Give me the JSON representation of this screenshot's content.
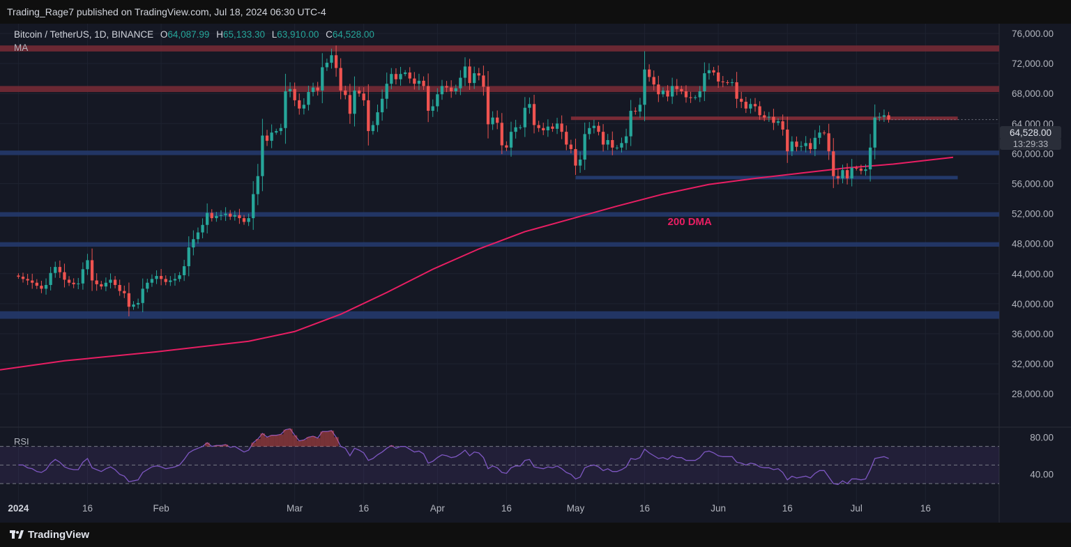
{
  "caption": "Trading_Rage7 published on TradingView.com, Jul 18, 2024 06:30 UTC-4",
  "legend": {
    "symbol": "Bitcoin / TetherUS, 1D, BINANCE",
    "open_key": "O",
    "open": "64,087.99",
    "high_key": "H",
    "high": "65,133.30",
    "low_key": "L",
    "low": "63,910.00",
    "close_key": "C",
    "close": "64,528.00",
    "indicator": "MA"
  },
  "rsi_label": "RSI",
  "last_price": "64,528.00",
  "countdown": "13:29:33",
  "footer_brand": "TradingView",
  "colors": {
    "bull": "#26a69a",
    "bear": "#ef5350",
    "ma": "#e91e63",
    "resistance": "#7a2b36",
    "support": "#23396b",
    "rsi": "#7e57c2"
  },
  "chart_data": {
    "type": "candlestick",
    "title": "Bitcoin / TetherUS, 1D, BINANCE",
    "y_ticks": [
      "76,000.00",
      "72,000.00",
      "68,000.00",
      "64,000.00",
      "60,000.00",
      "56,000.00",
      "52,000.00",
      "48,000.00",
      "44,000.00",
      "40,000.00",
      "36,000.00",
      "32,000.00",
      "28,000.00"
    ],
    "y_tick_values": [
      76000,
      72000,
      68000,
      64000,
      60000,
      56000,
      52000,
      48000,
      44000,
      40000,
      36000,
      32000,
      28000
    ],
    "x_ticks": [
      "2024",
      "16",
      "Feb",
      "Mar",
      "16",
      "Apr",
      "16",
      "May",
      "16",
      "Jun",
      "16",
      "Jul",
      "16"
    ],
    "x_tick_days": [
      0,
      15,
      31,
      60,
      75,
      91,
      106,
      121,
      136,
      152,
      167,
      182,
      197
    ],
    "day_range": [
      -4,
      213
    ],
    "ylim": [
      24400,
      77300
    ],
    "closes": [
      43600,
      43300,
      43100,
      42800,
      42400,
      42000,
      42500,
      44100,
      44900,
      44200,
      43200,
      42800,
      42600,
      42700,
      44600,
      45800,
      43100,
      42600,
      42300,
      42800,
      43200,
      42500,
      41700,
      41400,
      39600,
      39900,
      40100,
      42000,
      42800,
      43300,
      43700,
      43300,
      42900,
      43100,
      43300,
      43800,
      45000,
      47500,
      48600,
      49500,
      50500,
      52100,
      51400,
      51700,
      51800,
      52000,
      51600,
      51800,
      51400,
      50900,
      51400,
      54600,
      57000,
      62400,
      61700,
      62800,
      63000,
      63400,
      68300,
      68600,
      67100,
      66000,
      66500,
      68200,
      68800,
      68400,
      71500,
      72100,
      73100,
      71400,
      68400,
      67800,
      65300,
      68400,
      68000,
      67100,
      63000,
      63800,
      65500,
      67300,
      69300,
      70600,
      69900,
      70600,
      70800,
      70000,
      69300,
      69700,
      69000,
      65700,
      66300,
      67900,
      69000,
      68800,
      68300,
      68700,
      70100,
      71600,
      69400,
      70700,
      70400,
      68900,
      63900,
      64800,
      64100,
      61100,
      60800,
      62900,
      63500,
      63500,
      66100,
      66600,
      63800,
      63400,
      63100,
      63600,
      63300,
      64000,
      62900,
      61200,
      60600,
      58400,
      59200,
      62600,
      63400,
      63700,
      62900,
      61200,
      61800,
      60800,
      60800,
      61400,
      62300,
      65700,
      65600,
      66500,
      71200,
      70200,
      69200,
      67900,
      68400,
      67600,
      69000,
      68600,
      68300,
      67500,
      67400,
      67500,
      68300,
      70700,
      71100,
      70800,
      69600,
      69500,
      69400,
      69500,
      67300,
      66900,
      66000,
      66600,
      66300,
      65100,
      64800,
      64900,
      64100,
      64300,
      63200,
      60300,
      61600,
      60900,
      61000,
      61400,
      60600,
      62100,
      62800,
      62700,
      60300,
      57000,
      56700,
      57800,
      56700,
      58100,
      58000,
      57700,
      57900,
      60800,
      64800,
      64900,
      65100,
      64528
    ],
    "sma200": [
      [
        -4,
        31200
      ],
      [
        10,
        32400
      ],
      [
        30,
        33600
      ],
      [
        50,
        35000
      ],
      [
        60,
        36300
      ],
      [
        70,
        38600
      ],
      [
        80,
        41500
      ],
      [
        90,
        44600
      ],
      [
        100,
        47300
      ],
      [
        110,
        49600
      ],
      [
        120,
        51300
      ],
      [
        130,
        53000
      ],
      [
        140,
        54600
      ],
      [
        150,
        55900
      ],
      [
        160,
        56700
      ],
      [
        170,
        57400
      ],
      [
        180,
        58100
      ],
      [
        190,
        58600
      ],
      [
        200,
        59300
      ],
      [
        203,
        59500
      ]
    ],
    "resistance_zones": [
      [
        73600,
        74400
      ],
      [
        68200,
        69000
      ]
    ],
    "support_zones": [
      [
        59800,
        60400
      ],
      [
        51600,
        52200
      ],
      [
        47600,
        48200
      ],
      [
        38000,
        39000
      ]
    ],
    "horizontal_lines": [
      {
        "y": 64700,
        "from_day": 120,
        "to_day": 204,
        "color": "#7a2b36"
      },
      {
        "y": 56800,
        "from_day": 121,
        "to_day": 204,
        "color": "#23396b"
      }
    ],
    "annotation": {
      "text": "200 DMA",
      "day": 141,
      "y": 50500
    },
    "rsi": {
      "y_ticks": [
        "80.00",
        "40.00"
      ],
      "y_tick_values": [
        80,
        40
      ],
      "ylim": [
        15,
        90
      ],
      "overbought": 70,
      "oversold": 30,
      "middle": 50,
      "values": [
        50,
        50,
        47,
        46,
        43,
        42,
        45,
        52,
        56,
        53,
        48,
        46,
        45,
        45,
        53,
        57,
        47,
        45,
        43,
        46,
        48,
        45,
        40,
        38,
        32,
        33,
        34,
        42,
        45,
        48,
        49,
        48,
        46,
        47,
        48,
        50,
        56,
        63,
        66,
        68,
        70,
        74,
        70,
        71,
        71,
        72,
        69,
        70,
        67,
        64,
        66,
        74,
        78,
        84,
        80,
        82,
        82,
        83,
        88,
        89,
        82,
        76,
        77,
        80,
        81,
        79,
        86,
        86,
        87,
        80,
        70,
        68,
        60,
        68,
        66,
        63,
        55,
        57,
        61,
        64,
        68,
        71,
        68,
        70,
        70,
        67,
        64,
        65,
        62,
        52,
        54,
        58,
        61,
        60,
        58,
        59,
        62,
        66,
        60,
        64,
        63,
        58,
        46,
        49,
        47,
        42,
        41,
        47,
        49,
        49,
        55,
        56,
        48,
        47,
        46,
        48,
        47,
        49,
        46,
        42,
        40,
        35,
        37,
        47,
        49,
        50,
        48,
        44,
        46,
        43,
        43,
        45,
        48,
        57,
        56,
        58,
        67,
        63,
        60,
        57,
        58,
        56,
        60,
        58,
        58,
        55,
        55,
        55,
        58,
        64,
        65,
        63,
        60,
        59,
        59,
        59,
        53,
        52,
        50,
        52,
        51,
        48,
        47,
        47,
        45,
        46,
        42,
        34,
        38,
        36,
        37,
        38,
        36,
        41,
        44,
        44,
        37,
        30,
        29,
        33,
        30,
        35,
        35,
        34,
        35,
        45,
        57,
        58,
        59,
        57
      ]
    }
  }
}
